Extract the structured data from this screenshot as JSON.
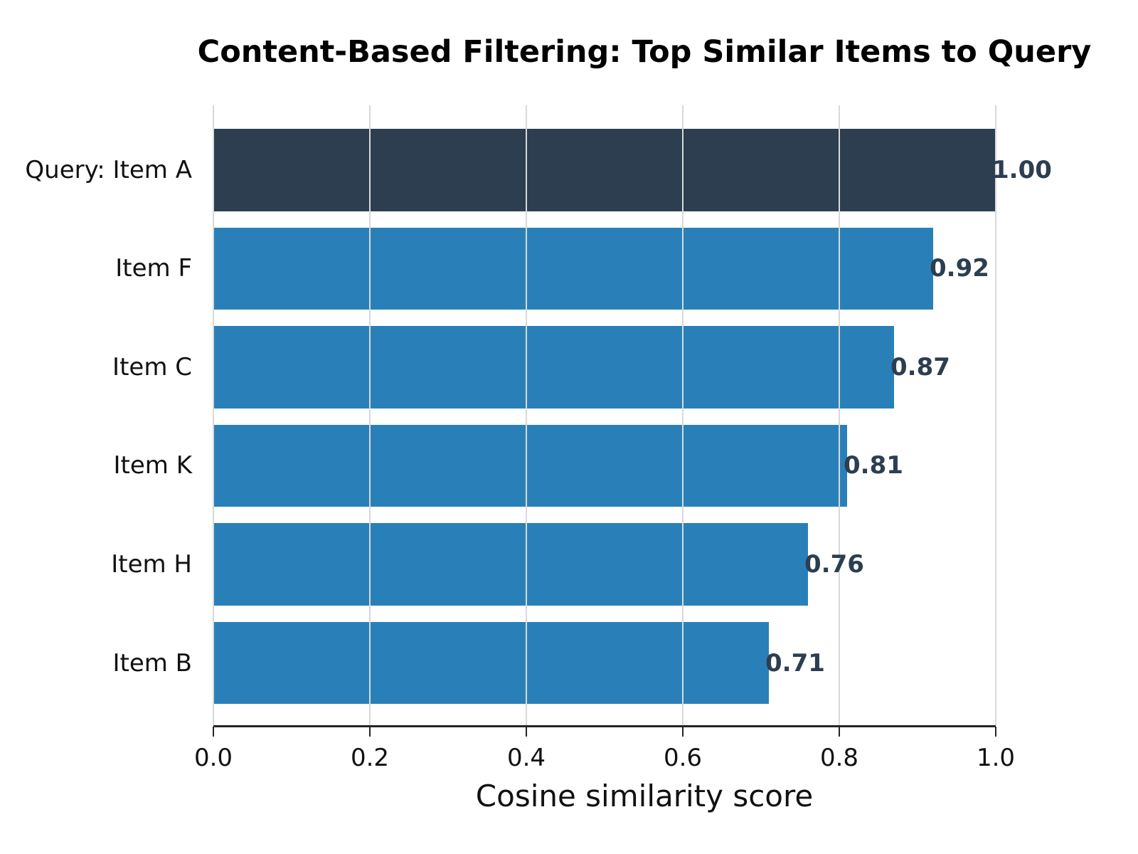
{
  "title": "Content-Based Filtering: Top Similar Items to Query",
  "chart_data": {
    "type": "bar",
    "orientation": "horizontal",
    "title": "Content-Based Filtering: Top Similar Items to Query",
    "categories": [
      "Query: Item A",
      "Item F",
      "Item C",
      "Item K",
      "Item H",
      "Item B"
    ],
    "values": [
      1.0,
      0.92,
      0.87,
      0.81,
      0.76,
      0.71
    ],
    "value_labels": [
      "1.00",
      "0.92",
      "0.87",
      "0.81",
      "0.76",
      "0.71"
    ],
    "bar_colors": [
      "#2C3E50",
      "#2980B9",
      "#2980B9",
      "#2980B9",
      "#2980B9",
      "#2980B9"
    ],
    "xlabel": "Cosine similarity score",
    "ylabel": "",
    "xlim": [
      0.0,
      1.0
    ],
    "xticks": [
      "0.0",
      "0.2",
      "0.4",
      "0.6",
      "0.8",
      "1.0"
    ],
    "xtick_values": [
      0.0,
      0.2,
      0.4,
      0.6,
      0.8,
      1.0
    ],
    "grid": "vertical-on-top-of-bars",
    "legend": "none",
    "colors": {
      "query_bar": "#2C3E50",
      "similar_bar": "#2980B9",
      "gridline": "#D9D9D9",
      "axis_spine": "#262626",
      "tick_mark": "#262626",
      "value_label_text": "#2C3E50",
      "axis_text": "#111111",
      "title_text": "#000000",
      "background": "#FFFFFF"
    }
  }
}
